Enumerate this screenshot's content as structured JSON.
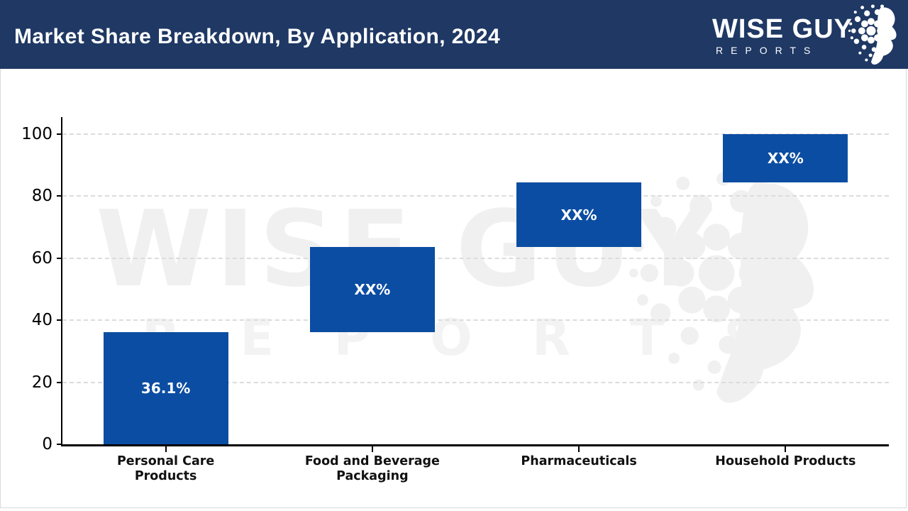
{
  "header": {
    "title": "Market Share Breakdown, By Application, 2024",
    "logo": {
      "line1": "WISE GUY",
      "line2": "REPORTS"
    }
  },
  "watermark": {
    "line1": "WISE GUY",
    "line2": "REPORTS"
  },
  "chart_data": {
    "type": "bar",
    "subtype": "waterfall",
    "title": "Market Share Breakdown, By Application, 2024",
    "categories": [
      "Personal Care Products",
      "Food and Beverage Packaging",
      "Pharmaceuticals",
      "Household Products"
    ],
    "bars": [
      {
        "category": "Personal Care Products",
        "start": 0,
        "end": 36.1,
        "label": "36.1%"
      },
      {
        "category": "Food and Beverage Packaging",
        "start": 36.1,
        "end": 63.5,
        "label": "XX%"
      },
      {
        "category": "Pharmaceuticals",
        "start": 63.5,
        "end": 84.3,
        "label": "XX%"
      },
      {
        "category": "Household Products",
        "start": 84.3,
        "end": 100,
        "label": "XX%"
      }
    ],
    "xlabel": "",
    "ylabel": "",
    "ylim": [
      0,
      105
    ],
    "yticks": [
      0,
      20,
      40,
      60,
      80,
      100
    ],
    "grid": "horizontal-dashed",
    "legend": "none"
  },
  "colors": {
    "header_bg": "#1f3864",
    "bar": "#0b4da2",
    "bar_label": "#ffffff",
    "grid": "#dcdcdc",
    "axis": "#000000",
    "watermark": "#f0f0f0"
  }
}
